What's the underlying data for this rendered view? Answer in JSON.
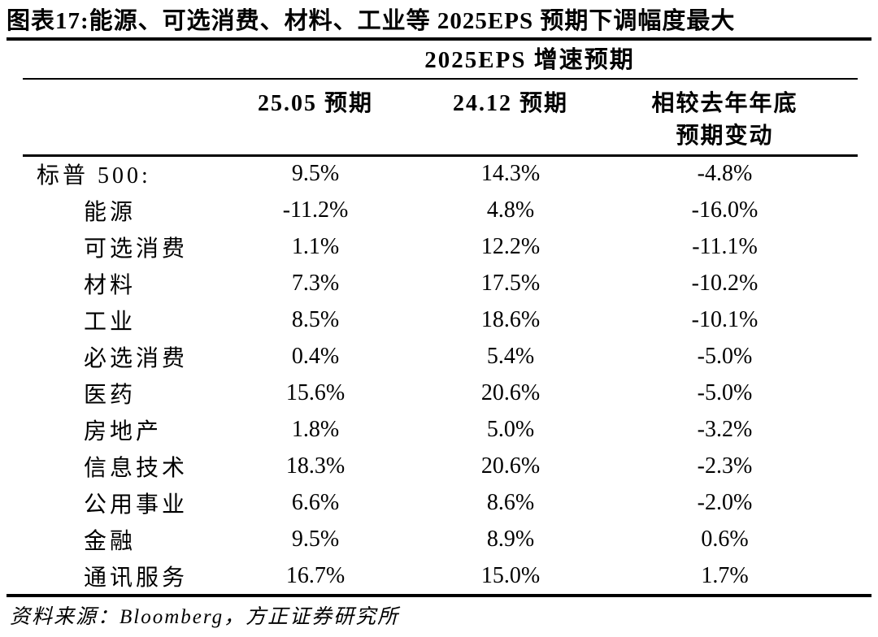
{
  "figure": {
    "title": "图表17:能源、可选消费、材料、工业等 2025EPS 预期下调幅度最大",
    "source_note": "资料来源：Bloomberg，方正证券研究所"
  },
  "table": {
    "group_header": "2025EPS 增速预期",
    "headers": {
      "col_2505": "25.05 预期",
      "col_2412": "24.12 预期",
      "col_change_line1": "相较去年年底",
      "col_change_line2": "预期变动"
    }
  },
  "chart_data": {
    "type": "table",
    "title": "2025EPS 增速预期",
    "columns": [
      "25.05 预期",
      "24.12 预期",
      "相较去年年底预期变动"
    ],
    "rows": [
      {
        "label": "标普 500:",
        "values": [
          "9.5%",
          "14.3%",
          "-4.8%"
        ]
      },
      {
        "label": "能源",
        "values": [
          "-11.2%",
          "4.8%",
          "-16.0%"
        ]
      },
      {
        "label": "可选消费",
        "values": [
          "1.1%",
          "12.2%",
          "-11.1%"
        ]
      },
      {
        "label": "材料",
        "values": [
          "7.3%",
          "17.5%",
          "-10.2%"
        ]
      },
      {
        "label": "工业",
        "values": [
          "8.5%",
          "18.6%",
          "-10.1%"
        ]
      },
      {
        "label": "必选消费",
        "values": [
          "0.4%",
          "5.4%",
          "-5.0%"
        ]
      },
      {
        "label": "医药",
        "values": [
          "15.6%",
          "20.6%",
          "-5.0%"
        ]
      },
      {
        "label": "房地产",
        "values": [
          "1.8%",
          "5.0%",
          "-3.2%"
        ]
      },
      {
        "label": "信息技术",
        "values": [
          "18.3%",
          "20.6%",
          "-2.3%"
        ]
      },
      {
        "label": "公用事业",
        "values": [
          "6.6%",
          "8.6%",
          "-2.0%"
        ]
      },
      {
        "label": "金融",
        "values": [
          "9.5%",
          "8.9%",
          "0.6%"
        ]
      },
      {
        "label": "通讯服务",
        "values": [
          "16.7%",
          "15.0%",
          "1.7%"
        ]
      }
    ]
  },
  "colors": {
    "background": "#ffffff",
    "text": "#000000",
    "rule": "#000000"
  }
}
